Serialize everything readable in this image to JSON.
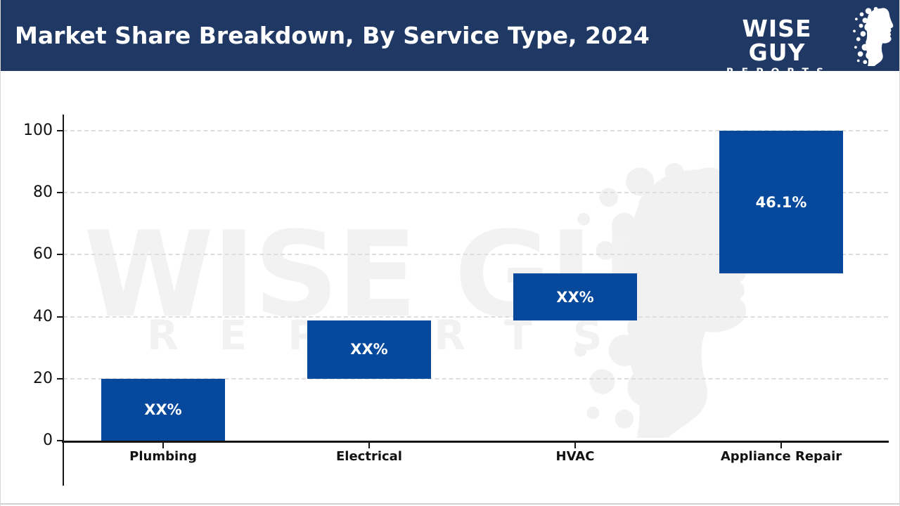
{
  "header": {
    "title": "Market Share Breakdown, By Service Type, 2024",
    "logo": {
      "name": "WISE GUY",
      "sub": "REPORTS"
    }
  },
  "watermark": {
    "name": "WISE GUY",
    "sub": "REPORTS"
  },
  "chart_data": {
    "type": "bar",
    "subtype": "waterfall",
    "title": "Market Share Breakdown, By Service Type, 2024",
    "categories": [
      "Plumbing",
      "Electrical",
      "HVAC",
      "Appliance Repair"
    ],
    "segments": [
      {
        "category": "Plumbing",
        "start": 0,
        "end": 20,
        "value_label": "XX%"
      },
      {
        "category": "Electrical",
        "start": 20,
        "end": 38.8,
        "value_label": "XX%"
      },
      {
        "category": "HVAC",
        "start": 38.8,
        "end": 53.9,
        "value_label": "XX%"
      },
      {
        "category": "Appliance Repair",
        "start": 53.9,
        "end": 100,
        "value_label": "46.1%"
      }
    ],
    "yticks": [
      0,
      20,
      40,
      60,
      80,
      100
    ],
    "ylim": [
      0,
      105
    ],
    "xlabel": "",
    "ylabel": "",
    "grid": "horizontal-dashed",
    "legend": "none",
    "colors": {
      "bar": "#05489c",
      "header_bg": "#1f3864",
      "grid": "#dedede",
      "axis": "#161616",
      "bar_label": "#ffffff",
      "watermark": "#f2f2f3"
    }
  }
}
